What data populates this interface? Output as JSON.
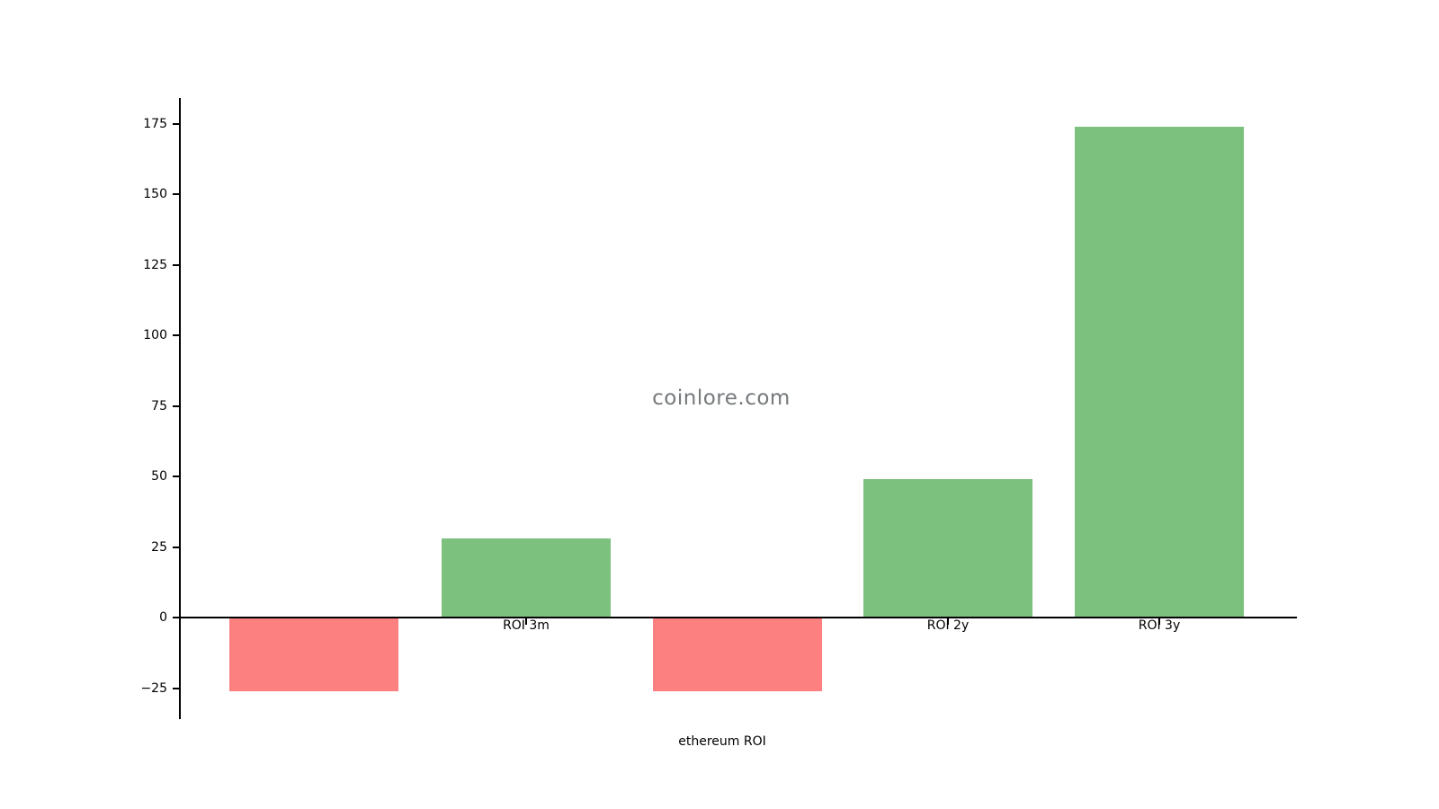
{
  "page": {
    "background": "#ffffff"
  },
  "watermark": {
    "text": "coinlore.com",
    "color": "#75797b"
  },
  "chart_data": {
    "type": "bar",
    "title": "",
    "xlabel": "ethereum ROI",
    "ylabel": "",
    "categories": [
      "",
      "ROI 3m",
      "",
      "ROI 2y",
      "ROI 3y"
    ],
    "values": [
      -26,
      28,
      -26,
      49,
      174
    ],
    "bar_colors": [
      "#fd8080",
      "#7cc17e",
      "#fd8080",
      "#7cc17e",
      "#7cc17e"
    ],
    "positive_color": "#7cc17e",
    "negative_color": "#fd8080",
    "y_ticks": [
      175,
      150,
      125,
      100,
      75,
      50,
      25,
      0,
      -25
    ],
    "ylim": [
      -36,
      184
    ],
    "grid": false,
    "legend_position": "none",
    "axis_color": "#000000",
    "tick_label_color": "#000000"
  }
}
